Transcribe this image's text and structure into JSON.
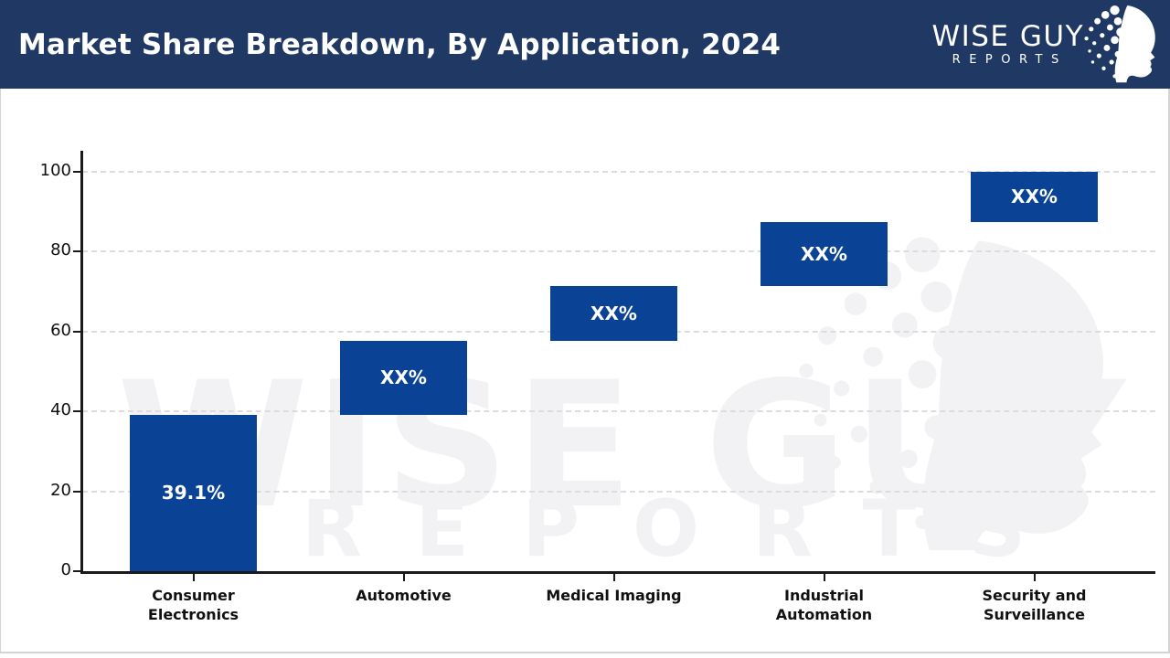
{
  "header": {
    "title": "Market Share Breakdown, By Application, 2024",
    "logo": {
      "line1": "WISE GUY",
      "line2": "REPORTS"
    }
  },
  "watermark": {
    "line1": "WISE GUY",
    "line2": "REPORTS"
  },
  "colors": {
    "header_bg": "#1f3864",
    "bar": "#0a4296",
    "bar_label": "#ffffff",
    "gridline": "#dcdcdc",
    "axis": "#1a1a1a",
    "watermark": "#f2f2f4"
  },
  "chart_data": {
    "type": "bar",
    "subtype": "waterfall",
    "title": "Market Share Breakdown, By Application, 2024",
    "categories": [
      [
        "Consumer",
        "Electronics"
      ],
      [
        "Automotive"
      ],
      [
        "Medical Imaging"
      ],
      [
        "Industrial",
        "Automation"
      ],
      [
        "Security and",
        "Surveillance"
      ]
    ],
    "series": [
      {
        "name": "Market Share",
        "segments": [
          {
            "start": 0,
            "end": 39.1,
            "label": "39.1%"
          },
          {
            "start": 39.1,
            "end": 57.6,
            "label": "XX%"
          },
          {
            "start": 57.6,
            "end": 71.4,
            "label": "XX%"
          },
          {
            "start": 71.4,
            "end": 87.4,
            "label": "XX%"
          },
          {
            "start": 87.4,
            "end": 100,
            "label": "XX%"
          }
        ]
      }
    ],
    "yticks": [
      0,
      20,
      40,
      60,
      80,
      100
    ],
    "ylim": [
      0,
      105
    ],
    "xlabel": "",
    "ylabel": "",
    "grid": "horizontal-dashed",
    "legend": "none"
  }
}
